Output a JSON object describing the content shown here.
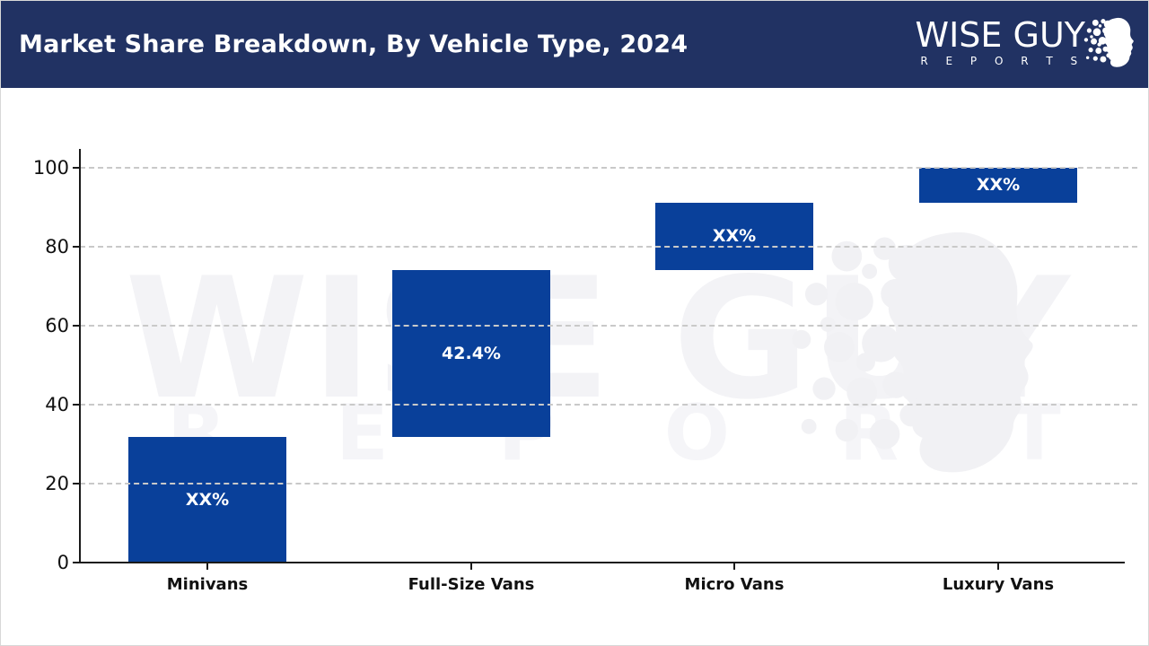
{
  "header": {
    "title": "Market Share Breakdown, By Vehicle Type, 2024",
    "logo": {
      "name": "WISE GUY",
      "subtitle": "R E P O R T S"
    }
  },
  "watermark": {
    "line1": "WISE GUY",
    "line2": "R E P O R T S"
  },
  "colors": {
    "header_bg": "#213263",
    "bar": "#09409a",
    "grid": "#c9c9c9",
    "axis": "#1a1a1a",
    "bar_label": "#ffffff",
    "watermark": "#f3f3f6"
  },
  "chart_data": {
    "type": "bar",
    "subtype": "waterfall",
    "title": "Market Share Breakdown, By Vehicle Type, 2024",
    "xlabel": "",
    "ylabel": "",
    "categories": [
      "Minivans",
      "Full-Size Vans",
      "Micro Vans",
      "Luxury Vans"
    ],
    "segments": [
      {
        "category": "Minivans",
        "start": 0,
        "end": 31.8,
        "label": "XX%"
      },
      {
        "category": "Full-Size Vans",
        "start": 31.8,
        "end": 74.2,
        "label": "42.4%",
        "value": 42.4
      },
      {
        "category": "Micro Vans",
        "start": 74.2,
        "end": 91.2,
        "label": "XX%"
      },
      {
        "category": "Luxury Vans",
        "start": 91.2,
        "end": 100.0,
        "label": "XX%"
      }
    ],
    "ylim": [
      0,
      100
    ],
    "yticks": [
      0,
      20,
      40,
      60,
      80,
      100
    ],
    "grid": "horizontal-dashed",
    "legend": "none",
    "bar_color": "#09409a",
    "label_color": "#ffffff"
  }
}
